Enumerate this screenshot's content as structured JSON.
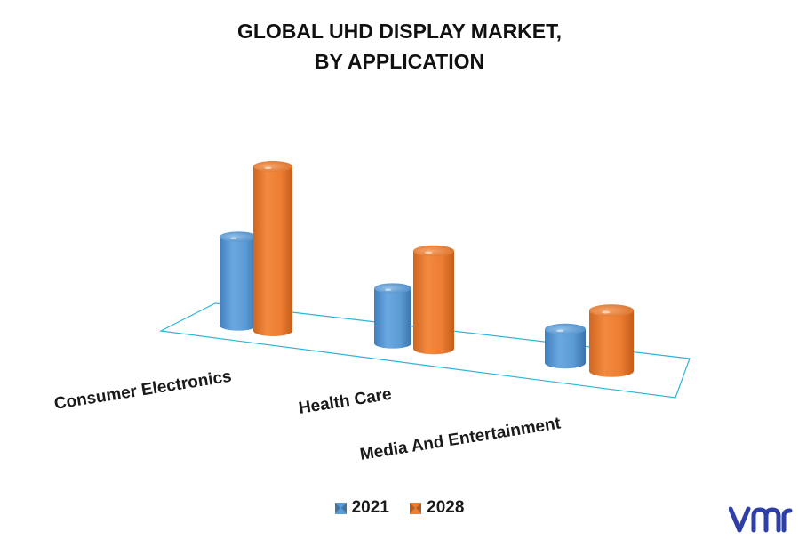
{
  "chart_data": {
    "type": "bar",
    "title_lines": [
      "GLOBAL UHD DISPLAY MARKET,",
      "BY APPLICATION"
    ],
    "categories": [
      "Consumer Electronics",
      "Health Care",
      "Media And Entertainment"
    ],
    "series": [
      {
        "name": "2021",
        "color": "#5b9bd5",
        "values": [
          100,
          62,
          38
        ]
      },
      {
        "name": "2028",
        "color": "#ed7d31",
        "values": [
          185,
          110,
          68
        ]
      }
    ],
    "style": "3d-cylinder",
    "grid": false,
    "legend_position": "bottom"
  },
  "logo": {
    "name": "vmr-logo",
    "color": "#2e3fa8"
  }
}
